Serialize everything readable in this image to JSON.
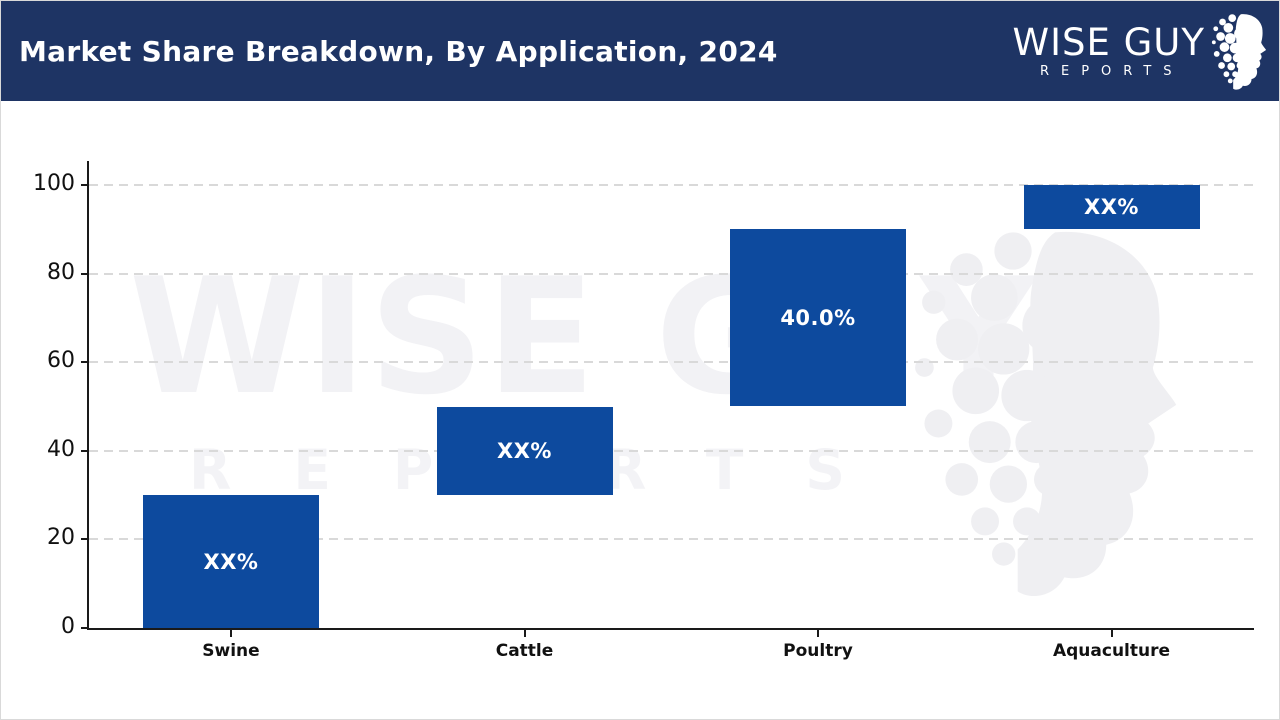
{
  "header": {
    "title": "Market Share Breakdown, By Application, 2024",
    "bg_color": "#1e3464",
    "logo": {
      "wordmark": "WISE GUY",
      "subtext": "REPORTS"
    }
  },
  "watermark": {
    "wordmark": "WISE GUY",
    "subtext": "REPORTS"
  },
  "chart_data": {
    "type": "bar",
    "subtype": "floating-waterfall",
    "title": "Market Share Breakdown, By Application, 2024",
    "categories": [
      "Swine",
      "Cattle",
      "Poultry",
      "Aquaculture"
    ],
    "series": [
      {
        "name": "Market Share (%)",
        "segments": [
          {
            "category": "Swine",
            "start": 0,
            "end": 30,
            "label": "XX%"
          },
          {
            "category": "Cattle",
            "start": 30,
            "end": 50,
            "label": "XX%"
          },
          {
            "category": "Poultry",
            "start": 50,
            "end": 90,
            "label": "40.0%"
          },
          {
            "category": "Aquaculture",
            "start": 90,
            "end": 100,
            "label": "XX%"
          }
        ]
      }
    ],
    "xlabel": "",
    "ylabel": "",
    "ylim": [
      0,
      105
    ],
    "yticks": [
      0,
      20,
      40,
      60,
      80,
      100
    ],
    "grid": "horizontal-dashed",
    "legend": "none",
    "bar_color": "#0d4a9e",
    "bar_label_color": "#ffffff",
    "axis_color": "#1a1a1a",
    "gridline_color": "#d9d9d9"
  }
}
